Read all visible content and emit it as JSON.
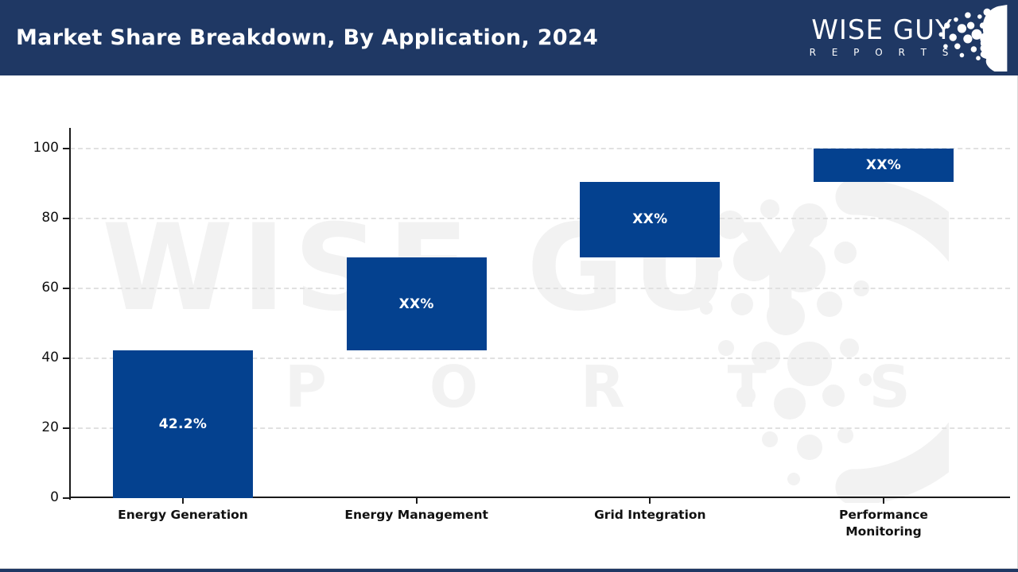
{
  "header": {
    "title": "Market Share Breakdown, By Application, 2024",
    "logo": {
      "line1": "WISE GUY",
      "line2": "R E P O R T S"
    }
  },
  "watermark": {
    "line1": "WISE GUY",
    "line2": "P O R T S"
  },
  "colors": {
    "header_bg": "#1f3864",
    "bar": "#04418f",
    "bar_label": "#ffffff",
    "axis": "#1a1a1a",
    "gridline": "#e1e1e1",
    "watermark": "#f2f2f2"
  },
  "chart_data": {
    "type": "waterfall",
    "title": "Market Share Breakdown, By Application, 2024",
    "categories": [
      "Energy Generation",
      "Energy Management",
      "Grid Integration",
      "Performance Monitoring"
    ],
    "segments": [
      {
        "category": "Energy Generation",
        "label_lines": [
          "Energy Generation"
        ],
        "start": 0,
        "end": 42.2,
        "value_label": "42.2%"
      },
      {
        "category": "Energy Management",
        "label_lines": [
          "Energy Management"
        ],
        "start": 42.2,
        "end": 68.9,
        "value_label": "XX%"
      },
      {
        "category": "Grid Integration",
        "label_lines": [
          "Grid Integration"
        ],
        "start": 68.9,
        "end": 90.5,
        "value_label": "XX%"
      },
      {
        "category": "Performance Monitoring",
        "label_lines": [
          "Performance",
          "Monitoring"
        ],
        "start": 90.5,
        "end": 100,
        "value_label": "XX%"
      }
    ],
    "ylim": [
      0,
      100
    ],
    "yticks": [
      0,
      20,
      40,
      60,
      80,
      100
    ],
    "xlabel": "",
    "ylabel": "",
    "grid": "horizontal-dashed",
    "legend": "none",
    "bar_color": "#04418f"
  }
}
